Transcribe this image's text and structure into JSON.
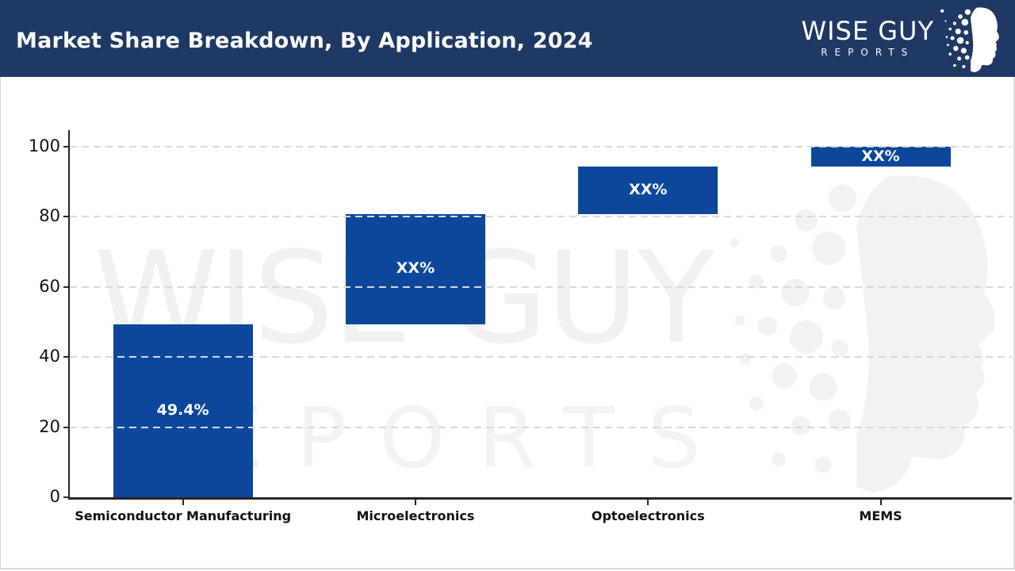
{
  "header": {
    "title": "Market Share Breakdown, By Application, 2024",
    "bg_color": "#1f3864",
    "logo": {
      "line1": "WISE GUY",
      "line2": "REPORTS",
      "icon": "dotted-head-icon"
    }
  },
  "watermark": {
    "line1": "WISE GUY",
    "line2": "REPORTS"
  },
  "colors": {
    "bar": "#0c479c",
    "grid": "#d8d8d8",
    "axis": "#262626",
    "bar_label": "#ffffff",
    "header_bg": "#1f3864"
  },
  "chart_data": {
    "type": "bar",
    "subtype": "waterfall",
    "title": "Market Share Breakdown, By Application, 2024",
    "categories": [
      "Semiconductor Manufacturing",
      "Microelectronics",
      "Optoelectronics",
      "MEMS"
    ],
    "segments": [
      {
        "category": "Semiconductor Manufacturing",
        "start": 0,
        "end": 49.4,
        "label": "49.4%"
      },
      {
        "category": "Microelectronics",
        "start": 49.4,
        "end": 80.7,
        "label": "XX%"
      },
      {
        "category": "Optoelectronics",
        "start": 80.7,
        "end": 94.3,
        "label": "XX%"
      },
      {
        "category": "MEMS",
        "start": 94.3,
        "end": 100,
        "label": "XX%"
      }
    ],
    "xlabel": "",
    "ylabel": "",
    "ylim": [
      0,
      105
    ],
    "yticks": [
      0,
      20,
      40,
      60,
      80,
      100
    ],
    "grid": "horizontal-dashed",
    "legend": "none",
    "bar_color": "#0c479c"
  }
}
